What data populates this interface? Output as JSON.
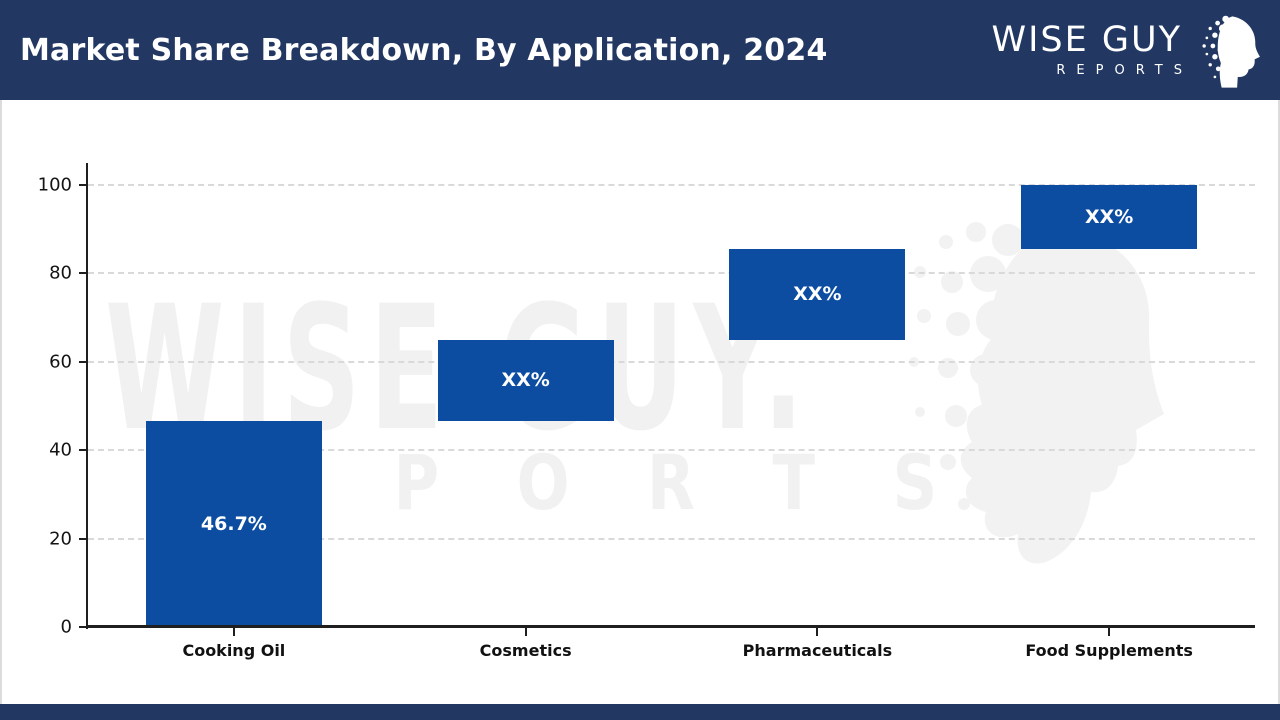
{
  "header": {
    "title": "Market Share Breakdown, By Application, 2024",
    "logo": {
      "line1": "WISE GUY",
      "line2": "REPORTS"
    }
  },
  "watermark": {
    "line1": "WISE GUY.",
    "line2": "R E P O R T S"
  },
  "chart_data": {
    "type": "bar",
    "subtype": "waterfall",
    "title": "Market Share Breakdown, By Application, 2024",
    "categories": [
      "Cooking Oil",
      "Cosmetics",
      "Pharmaceuticals",
      "Food Supplements"
    ],
    "segments": [
      {
        "category": "Cooking Oil",
        "start": 0,
        "end": 46.7,
        "label": "46.7%"
      },
      {
        "category": "Cosmetics",
        "start": 46.7,
        "end": 65,
        "label": "XX%"
      },
      {
        "category": "Pharmaceuticals",
        "start": 65,
        "end": 85.6,
        "label": "XX%"
      },
      {
        "category": "Food Supplements",
        "start": 85.6,
        "end": 100,
        "label": "XX%"
      }
    ],
    "xlabel": "",
    "ylabel": "",
    "ylim": [
      0,
      105
    ],
    "yticks": [
      0,
      20,
      40,
      60,
      80,
      100
    ],
    "grid": "horizontal-dashed",
    "legend": "none",
    "bar_color": "#0c4da2",
    "bar_label_color": "#ffffff"
  },
  "colors": {
    "header_bg": "#223863",
    "footer_bg": "#223863",
    "bar": "#0c4da2",
    "gridline": "#d9d9d9",
    "axis": "#1f1f1f",
    "watermark": "#f1f1f2"
  }
}
